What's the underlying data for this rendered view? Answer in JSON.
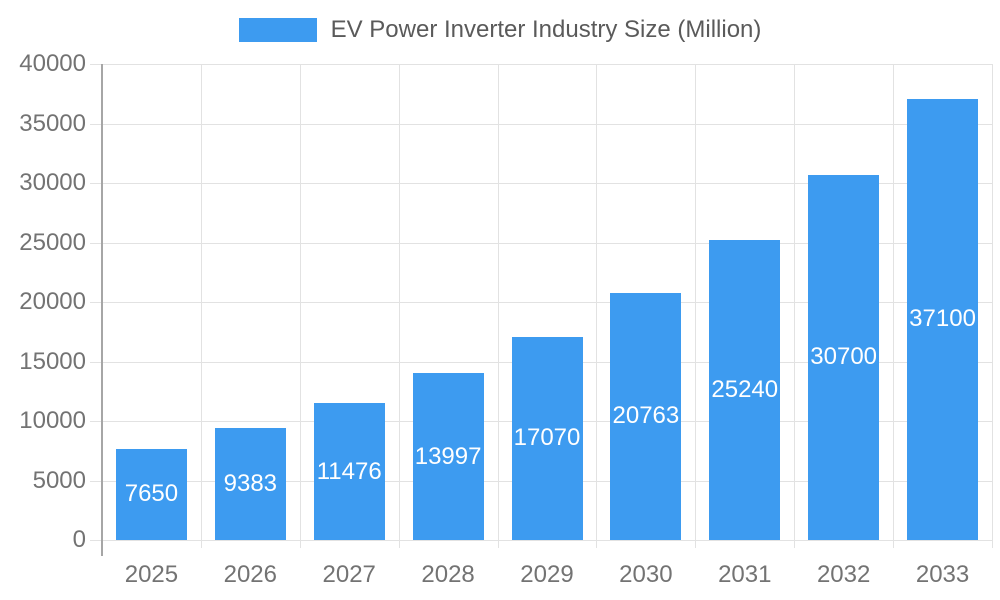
{
  "chart_data": {
    "type": "bar",
    "title": "EV Power Inverter Industry Size (Million)",
    "legend_label": "EV Power Inverter Industry Size (Million)",
    "legend_position": "top",
    "categories": [
      "2025",
      "2026",
      "2027",
      "2028",
      "2029",
      "2030",
      "2031",
      "2032",
      "2033"
    ],
    "values": [
      7650,
      9383,
      11476,
      13997,
      17070,
      20763,
      25240,
      30700,
      37100
    ],
    "value_labels": [
      "7650",
      "9383",
      "11476",
      "13997",
      "17070",
      "20763",
      "25240",
      "30700",
      "37100"
    ],
    "xlabel": "",
    "ylabel": "",
    "ylim": [
      0,
      40000
    ],
    "ytick_interval": 5000,
    "yticks": [
      0,
      5000,
      10000,
      15000,
      20000,
      25000,
      30000,
      35000,
      40000
    ],
    "grid": true,
    "colors": {
      "bar": "#3d9bf0",
      "grid_line": "#e2e2e2",
      "axis_line": "#a6a6a6",
      "axis_text": "#737373",
      "legend_text": "#5a5a5a",
      "value_text": "#ffffff",
      "background": "#ffffff"
    }
  }
}
